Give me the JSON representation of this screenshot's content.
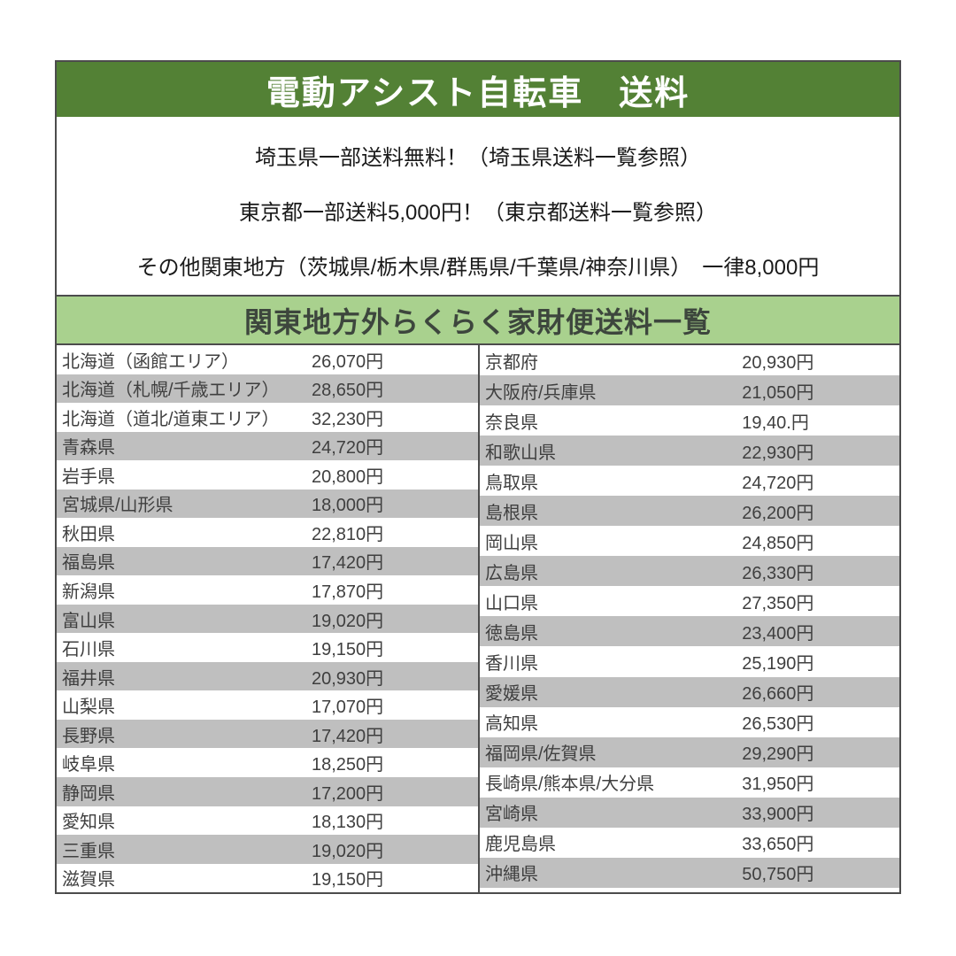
{
  "page": {
    "title": "電動アシスト自転車　送料",
    "notes": [
      "埼玉県一部送料無料！（埼玉県送料一覧参照）",
      "東京都一部送料5,000円！（東京都送料一覧参照）",
      "その他関東地方（茨城県/栃木県/群馬県/千葉県/神奈川県）　一律8,000円"
    ],
    "table_title": "関東地方外らくらく家財便送料一覧"
  },
  "colors": {
    "header_green": "#538135",
    "subheader_green": "#a9d18e",
    "subheader_text": "#3d463d",
    "row_alt_gray": "#bfbfbf",
    "border_dark": "#4c4c4c",
    "table_text": "#3f3f3f"
  },
  "shipping_table": {
    "left_rows": [
      {
        "name": "北海道（函館エリア）",
        "price": "26,070円"
      },
      {
        "name": "北海道（札幌/千歳エリア）",
        "price": "28,650円"
      },
      {
        "name": "北海道（道北/道東エリア）",
        "price": "32,230円"
      },
      {
        "name": "青森県",
        "price": "24,720円"
      },
      {
        "name": "岩手県",
        "price": "20,800円"
      },
      {
        "name": "宮城県/山形県",
        "price": "18,000円"
      },
      {
        "name": "秋田県",
        "price": "22,810円"
      },
      {
        "name": "福島県",
        "price": "17,420円"
      },
      {
        "name": "新潟県",
        "price": "17,870円"
      },
      {
        "name": "富山県",
        "price": "19,020円"
      },
      {
        "name": "石川県",
        "price": "19,150円"
      },
      {
        "name": "福井県",
        "price": "20,930円"
      },
      {
        "name": "山梨県",
        "price": "17,070円"
      },
      {
        "name": "長野県",
        "price": "17,420円"
      },
      {
        "name": "岐阜県",
        "price": "18,250円"
      },
      {
        "name": "静岡県",
        "price": "17,200円"
      },
      {
        "name": "愛知県",
        "price": "18,130円"
      },
      {
        "name": "三重県",
        "price": "19,020円"
      },
      {
        "name": "滋賀県",
        "price": "19,150円"
      }
    ],
    "right_rows": [
      {
        "name": "京都府",
        "price": "20,930円"
      },
      {
        "name": "大阪府/兵庫県",
        "price": "21,050円"
      },
      {
        "name": "奈良県",
        "price": "19,40.円"
      },
      {
        "name": "和歌山県",
        "price": "22,930円"
      },
      {
        "name": "鳥取県",
        "price": "24,720円"
      },
      {
        "name": "島根県",
        "price": "26,200円"
      },
      {
        "name": "岡山県",
        "price": "24,850円"
      },
      {
        "name": "広島県",
        "price": "26,330円"
      },
      {
        "name": "山口県",
        "price": "27,350円"
      },
      {
        "name": "徳島県",
        "price": "23,400円"
      },
      {
        "name": "香川県",
        "price": "25,190円"
      },
      {
        "name": "愛媛県",
        "price": "26,660円"
      },
      {
        "name": "高知県",
        "price": "26,530円"
      },
      {
        "name": "福岡県/佐賀県",
        "price": "29,290円"
      },
      {
        "name": "長崎県/熊本県/大分県",
        "price": "31,950円"
      },
      {
        "name": "宮崎県",
        "price": "33,900円"
      },
      {
        "name": "鹿児島県",
        "price": "33,650円"
      },
      {
        "name": "沖縄県",
        "price": "50,750円"
      },
      {
        "name": "",
        "price": ""
      }
    ]
  }
}
